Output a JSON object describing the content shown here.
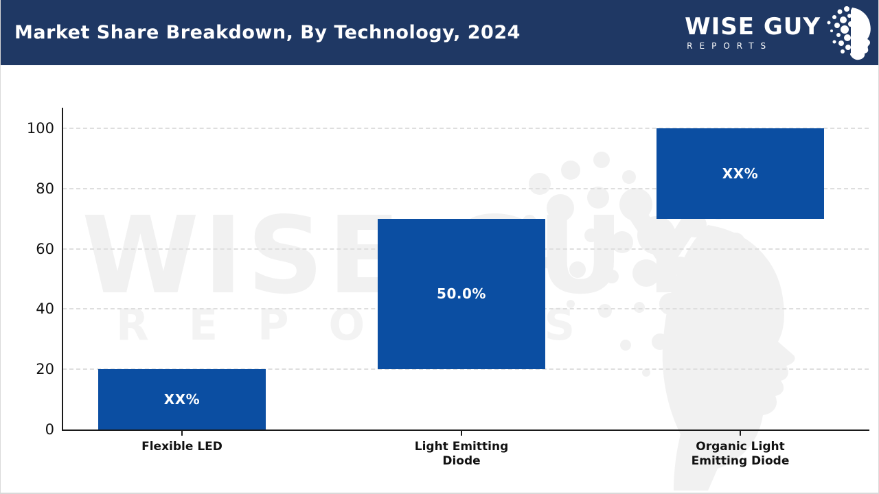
{
  "header": {
    "title": "Market Share Breakdown, By Technology, 2024",
    "logo": {
      "name": "WISE GUY",
      "tagline": "REPORTS"
    }
  },
  "watermark": {
    "line1": "WISE GUY",
    "line2": "REPORTS"
  },
  "chart_data": {
    "type": "bar",
    "variant": "floating-segment bars (cumulative market-share breakdown)",
    "title": "Market Share Breakdown, By Technology, 2024",
    "categories": [
      "Flexible LED",
      "Light Emitting\nDiode",
      "Organic Light\nEmitting Diode"
    ],
    "bars": [
      {
        "category": "Flexible LED",
        "start": 0,
        "end": 20,
        "value_label": "XX%"
      },
      {
        "category": "Light Emitting Diode",
        "start": 20,
        "end": 70,
        "value_label": "50.0%"
      },
      {
        "category": "Organic Light Emitting Diode",
        "start": 70,
        "end": 100,
        "value_label": "XX%"
      }
    ],
    "yticks": [
      0,
      20,
      40,
      60,
      80,
      100
    ],
    "ylim": [
      0,
      106
    ],
    "xlabel": "",
    "ylabel": "",
    "grid": "dashed horizontal gridlines",
    "legend": "none",
    "bar_color": "#0B4EA2"
  },
  "colors": {
    "header_bg": "#1F3864",
    "bar": "#0B4EA2",
    "axis": "#1a1a1a",
    "gridline": "#dedede",
    "watermark": "#f1f1f1",
    "canvas_border": "#d9d9d9"
  }
}
